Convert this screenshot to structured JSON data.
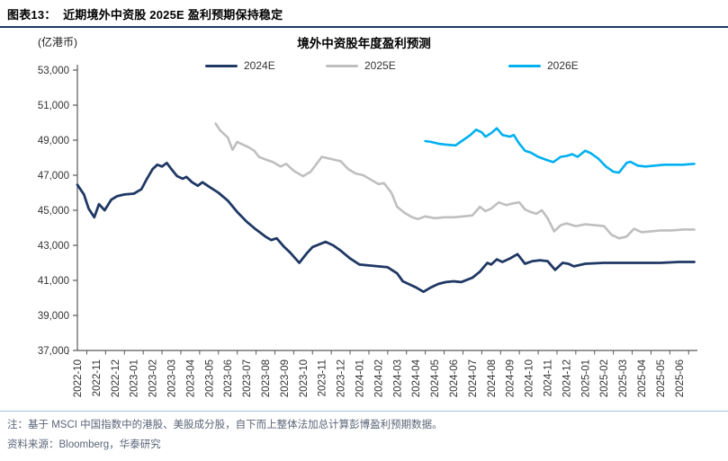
{
  "header": {
    "title": "图表13：  近期境外中资股 2025E 盈利预期保持稳定"
  },
  "chart_data": {
    "type": "line",
    "title": "境外中资股年度盈利预测",
    "unit_label": "(亿港币)",
    "xlabel": "",
    "ylabel": "亿港币",
    "ylim": [
      37000,
      53000
    ],
    "y_ticks": [
      53000,
      51000,
      49000,
      47000,
      45000,
      43000,
      41000,
      39000,
      37000
    ],
    "y_tick_labels": [
      "53,000",
      "51,000",
      "49,000",
      "47,000",
      "45,000",
      "43,000",
      "41,000",
      "39,000",
      "37,000"
    ],
    "grid": false,
    "legend_position": "top",
    "categories": [
      "2022-10",
      "2022-11",
      "2022-12",
      "2023-01",
      "2023-02",
      "2023-03",
      "2023-04",
      "2023-05",
      "2023-06",
      "2023-07",
      "2023-08",
      "2023-09",
      "2023-10",
      "2023-11",
      "2023-12",
      "2024-01",
      "2024-02",
      "2024-03",
      "2024-04",
      "2024-05",
      "2024-06",
      "2024-07",
      "2024-08",
      "2024-09",
      "2024-10",
      "2024-11",
      "2024-12",
      "2025-01",
      "2025-02",
      "2025-03",
      "2025-04",
      "2025-05",
      "2025-06"
    ],
    "x_note": "series points are [month_index_from_2022-10, value_in_yi_hkd]",
    "series": [
      {
        "name": "2024E",
        "color": "#1F3864",
        "width": 2.8,
        "points": [
          [
            0,
            46450
          ],
          [
            0.35,
            45900
          ],
          [
            0.6,
            45100
          ],
          [
            0.9,
            44600
          ],
          [
            1.15,
            45350
          ],
          [
            1.45,
            45000
          ],
          [
            1.8,
            45600
          ],
          [
            2.1,
            45800
          ],
          [
            2.5,
            45900
          ],
          [
            3.0,
            45950
          ],
          [
            3.4,
            46200
          ],
          [
            3.7,
            46800
          ],
          [
            4.0,
            47350
          ],
          [
            4.25,
            47600
          ],
          [
            4.5,
            47500
          ],
          [
            4.75,
            47700
          ],
          [
            5.0,
            47350
          ],
          [
            5.3,
            46950
          ],
          [
            5.6,
            46800
          ],
          [
            5.8,
            46900
          ],
          [
            6.1,
            46600
          ],
          [
            6.4,
            46400
          ],
          [
            6.65,
            46600
          ],
          [
            7.0,
            46350
          ],
          [
            7.5,
            46000
          ],
          [
            8.0,
            45550
          ],
          [
            8.5,
            44900
          ],
          [
            9.0,
            44350
          ],
          [
            9.5,
            43900
          ],
          [
            10.0,
            43500
          ],
          [
            10.3,
            43300
          ],
          [
            10.6,
            43400
          ],
          [
            11.0,
            42900
          ],
          [
            11.3,
            42600
          ],
          [
            11.8,
            42000
          ],
          [
            12.2,
            42550
          ],
          [
            12.5,
            42900
          ],
          [
            13.2,
            43200
          ],
          [
            13.6,
            43000
          ],
          [
            14.0,
            42700
          ],
          [
            14.5,
            42250
          ],
          [
            15.0,
            41900
          ],
          [
            15.5,
            41850
          ],
          [
            16.0,
            41800
          ],
          [
            16.5,
            41750
          ],
          [
            17.0,
            41400
          ],
          [
            17.3,
            40950
          ],
          [
            17.7,
            40750
          ],
          [
            18.0,
            40600
          ],
          [
            18.4,
            40350
          ],
          [
            18.8,
            40600
          ],
          [
            19.2,
            40800
          ],
          [
            19.6,
            40900
          ],
          [
            20.0,
            40950
          ],
          [
            20.4,
            40900
          ],
          [
            21.0,
            41150
          ],
          [
            21.4,
            41500
          ],
          [
            21.8,
            42000
          ],
          [
            22.0,
            41900
          ],
          [
            22.3,
            42200
          ],
          [
            22.6,
            42050
          ],
          [
            23.0,
            42250
          ],
          [
            23.4,
            42500
          ],
          [
            23.8,
            41950
          ],
          [
            24.2,
            42100
          ],
          [
            24.6,
            42150
          ],
          [
            25.0,
            42100
          ],
          [
            25.4,
            41600
          ],
          [
            25.8,
            42000
          ],
          [
            26.1,
            41950
          ],
          [
            26.4,
            41800
          ],
          [
            27.0,
            41950
          ],
          [
            28.0,
            42000
          ],
          [
            29.0,
            42000
          ],
          [
            30.0,
            42000
          ],
          [
            31.0,
            42000
          ],
          [
            32.0,
            42050
          ],
          [
            32.8,
            42050
          ]
        ]
      },
      {
        "name": "2025E",
        "color": "#BFBFBF",
        "width": 2.6,
        "points": [
          [
            7.35,
            49950
          ],
          [
            7.6,
            49550
          ],
          [
            7.8,
            49350
          ],
          [
            8.0,
            49150
          ],
          [
            8.25,
            48450
          ],
          [
            8.5,
            48900
          ],
          [
            8.8,
            48750
          ],
          [
            9.1,
            48600
          ],
          [
            9.4,
            48400
          ],
          [
            9.65,
            48050
          ],
          [
            10.0,
            47900
          ],
          [
            10.4,
            47750
          ],
          [
            10.8,
            47500
          ],
          [
            11.1,
            47650
          ],
          [
            11.5,
            47250
          ],
          [
            12.0,
            46950
          ],
          [
            12.4,
            47200
          ],
          [
            13.0,
            48050
          ],
          [
            13.4,
            47950
          ],
          [
            14.0,
            47800
          ],
          [
            14.4,
            47350
          ],
          [
            14.8,
            47100
          ],
          [
            15.2,
            47000
          ],
          [
            15.6,
            46750
          ],
          [
            16.0,
            46500
          ],
          [
            16.3,
            46550
          ],
          [
            16.7,
            46000
          ],
          [
            17.0,
            45200
          ],
          [
            17.4,
            44850
          ],
          [
            17.8,
            44600
          ],
          [
            18.1,
            44500
          ],
          [
            18.5,
            44650
          ],
          [
            19.0,
            44550
          ],
          [
            19.5,
            44600
          ],
          [
            20.0,
            44600
          ],
          [
            20.5,
            44650
          ],
          [
            21.0,
            44700
          ],
          [
            21.4,
            45200
          ],
          [
            21.7,
            44950
          ],
          [
            22.0,
            45100
          ],
          [
            22.4,
            45450
          ],
          [
            22.8,
            45300
          ],
          [
            23.2,
            45400
          ],
          [
            23.5,
            45450
          ],
          [
            23.8,
            45050
          ],
          [
            24.1,
            44900
          ],
          [
            24.4,
            44800
          ],
          [
            24.7,
            45000
          ],
          [
            25.0,
            44550
          ],
          [
            25.35,
            43800
          ],
          [
            25.7,
            44150
          ],
          [
            26.0,
            44250
          ],
          [
            26.5,
            44100
          ],
          [
            27.0,
            44200
          ],
          [
            27.5,
            44150
          ],
          [
            28.0,
            44100
          ],
          [
            28.4,
            43600
          ],
          [
            28.8,
            43400
          ],
          [
            29.2,
            43500
          ],
          [
            29.6,
            43950
          ],
          [
            30.0,
            43750
          ],
          [
            30.5,
            43800
          ],
          [
            31.0,
            43850
          ],
          [
            31.6,
            43850
          ],
          [
            32.2,
            43900
          ],
          [
            32.8,
            43900
          ]
        ]
      },
      {
        "name": "2026E",
        "color": "#00B0F0",
        "width": 2.6,
        "points": [
          [
            18.5,
            48950
          ],
          [
            18.8,
            48900
          ],
          [
            19.2,
            48800
          ],
          [
            19.6,
            48750
          ],
          [
            20.1,
            48700
          ],
          [
            20.5,
            49000
          ],
          [
            20.9,
            49300
          ],
          [
            21.2,
            49600
          ],
          [
            21.5,
            49450
          ],
          [
            21.7,
            49200
          ],
          [
            22.0,
            49400
          ],
          [
            22.3,
            49680
          ],
          [
            22.6,
            49300
          ],
          [
            23.0,
            49200
          ],
          [
            23.2,
            49300
          ],
          [
            23.5,
            48800
          ],
          [
            23.8,
            48400
          ],
          [
            24.1,
            48300
          ],
          [
            24.5,
            48050
          ],
          [
            25.0,
            47850
          ],
          [
            25.3,
            47750
          ],
          [
            25.7,
            48050
          ],
          [
            26.0,
            48100
          ],
          [
            26.3,
            48200
          ],
          [
            26.6,
            48050
          ],
          [
            27.0,
            48400
          ],
          [
            27.3,
            48250
          ],
          [
            27.7,
            47950
          ],
          [
            28.1,
            47500
          ],
          [
            28.5,
            47200
          ],
          [
            28.8,
            47150
          ],
          [
            29.2,
            47700
          ],
          [
            29.4,
            47770
          ],
          [
            29.8,
            47550
          ],
          [
            30.2,
            47500
          ],
          [
            30.7,
            47550
          ],
          [
            31.2,
            47600
          ],
          [
            31.7,
            47600
          ],
          [
            32.2,
            47600
          ],
          [
            32.8,
            47650
          ]
        ]
      }
    ]
  },
  "footnotes": {
    "note": "注：基于 MSCI 中国指数中的港股、美股成分股，自下而上整体法加总计算彭博盈利预期数据。",
    "source": "资料来源：Bloomberg，华泰研究"
  }
}
